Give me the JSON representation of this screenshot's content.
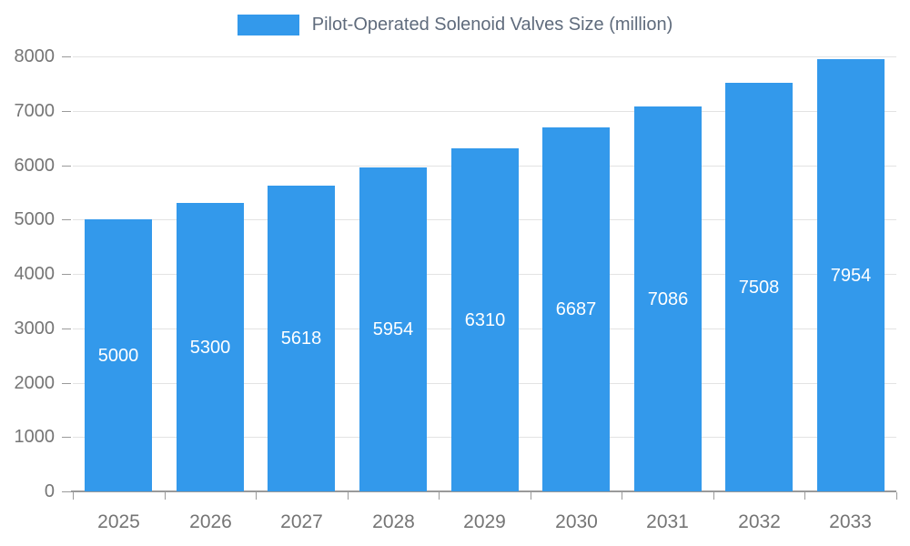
{
  "chart_data": {
    "type": "bar",
    "title": "Pilot-Operated Solenoid Valves Size (million)",
    "categories": [
      "2025",
      "2026",
      "2027",
      "2028",
      "2029",
      "2030",
      "2031",
      "2032",
      "2033"
    ],
    "values": [
      5000,
      5300,
      5618,
      5954,
      6310,
      6687,
      7086,
      7508,
      7954
    ],
    "xlabel": "",
    "ylabel": "",
    "ylim": [
      0,
      8000
    ],
    "ytick_step": 1000,
    "grid": true,
    "legend_position": "top",
    "bar_value_labels_inside": true,
    "colors": {
      "bar": "#3399EB",
      "bar_label": "#FFFFFF",
      "axis": "#9A9A9A",
      "grid": "#E3E3E3",
      "tick_label": "#757575",
      "legend_text": "#5F6B7C"
    }
  }
}
